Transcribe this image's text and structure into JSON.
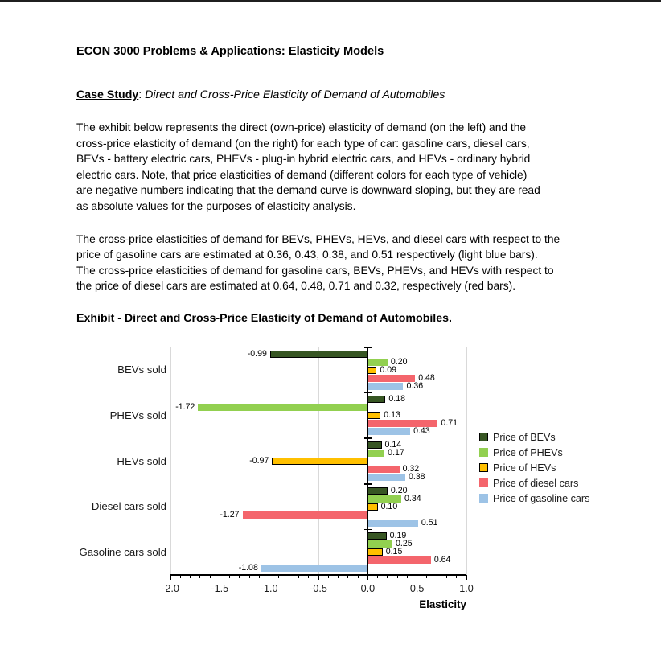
{
  "page": {
    "title": "ECON 3000 Problems & Applications: Elasticity Models",
    "case_study_label": "Case Study",
    "case_study_colon": ": ",
    "case_study_title": "Direct and Cross-Price Elasticity of Demand of Automobiles",
    "paragraph1": "The exhibit below represents the direct (own-price) elasticity of demand (on the left) and the\ncross-price elasticity of demand (on the right) for each type of car: gasoline cars, diesel cars,\nBEVs - battery electric cars, PHEVs - plug-in hybrid electric cars, and HEVs - ordinary hybrid\nelectric cars. Note, that price elasticities of demand (different colors for each type of vehicle)\nare negative numbers indicating that the demand curve is downward sloping, but they are read\nas absolute values for the purposes of elasticity analysis.",
    "paragraph2": "The cross-price elasticities of demand for BEVs, PHEVs, HEVs, and diesel cars with respect to the\nprice of gasoline cars are estimated at 0.36, 0.43, 0.38, and 0.51 respectively (light blue bars).\nThe cross-price elasticities of demand for gasoline cars, BEVs, PHEVs, and HEVs with respect to\nthe price of diesel cars are estimated at 0.64, 0.48, 0.71 and 0.32, respectively (red bars).",
    "exhibit_caption": "Exhibit - Direct and Cross-Price Elasticity of Demand of Automobiles."
  },
  "chart_data": {
    "type": "bar",
    "orientation": "horizontal",
    "title": "",
    "xlabel": "Elasticity",
    "categories": [
      "BEVs sold",
      "PHEVs sold",
      "HEVs sold",
      "Diesel cars sold",
      "Gasoline cars sold"
    ],
    "series": [
      {
        "name": "Price of BEVs",
        "color": "#375623",
        "border": "#000000",
        "values": [
          -0.99,
          0.18,
          0.14,
          0.2,
          0.19
        ]
      },
      {
        "name": "Price of PHEVs",
        "color": "#92D050",
        "border": null,
        "values": [
          0.2,
          -1.72,
          0.17,
          0.34,
          0.25
        ]
      },
      {
        "name": "Price of HEVs",
        "color": "#FFC000",
        "border": "#000000",
        "values": [
          0.09,
          0.13,
          -0.97,
          0.1,
          0.15
        ]
      },
      {
        "name": "Price of diesel cars",
        "color": "#F4656C",
        "border": null,
        "values": [
          0.48,
          0.71,
          0.32,
          -1.27,
          0.64
        ]
      },
      {
        "name": "Price of gasoline cars",
        "color": "#9DC3E6",
        "border": null,
        "values": [
          0.36,
          0.43,
          0.38,
          0.51,
          -1.08
        ]
      }
    ],
    "xlim": [
      -2.0,
      1.0
    ],
    "x_major_ticks": [
      "-2.0",
      "-1.5",
      "-1.0",
      "-0.5",
      "0.0",
      "0.5",
      "1.0"
    ],
    "minor_tick_step": 0.1,
    "grid": true,
    "data_labels": true,
    "legend_position": "right",
    "gridline_color": "#D9D9D9"
  }
}
